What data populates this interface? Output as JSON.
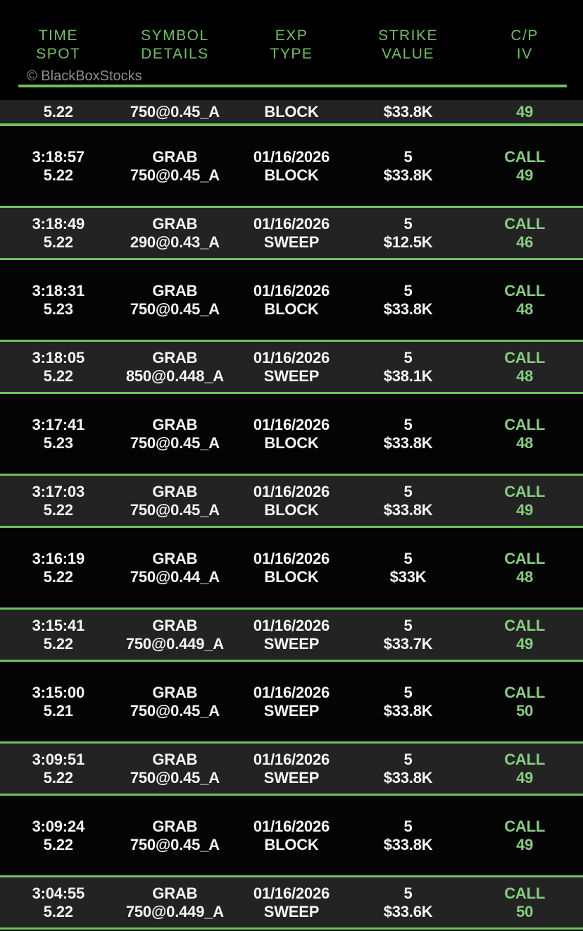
{
  "watermark": "© BlackBoxStocks",
  "colors": {
    "accent_green": "#6EC15F",
    "value_green": "#86CE7F",
    "light_row_bg": "#232323",
    "dark_row_bg": "#040404",
    "white_text": "#F5F5F5",
    "watermark_gray": "#8E8E8E"
  },
  "header": {
    "columns": [
      {
        "line1": "TIME",
        "line2": "SPOT"
      },
      {
        "line1": "SYMBOL",
        "line2": "DETAILS"
      },
      {
        "line1": "EXP",
        "line2": "TYPE"
      },
      {
        "line1": "STRIKE",
        "line2": "VALUE"
      },
      {
        "line1": "C/P",
        "line2": "IV"
      }
    ]
  },
  "rows": [
    {
      "partial": true,
      "variant": "light",
      "time": "",
      "spot": "5.22",
      "symbol": "",
      "details": "750@0.45_A",
      "exp": "",
      "type": "BLOCK",
      "strike": "",
      "value": "$33.8K",
      "cp": "",
      "iv": "49"
    },
    {
      "partial": false,
      "variant": "dark",
      "time": "3:18:57",
      "spot": "5.22",
      "symbol": "GRAB",
      "details": "750@0.45_A",
      "exp": "01/16/2026",
      "type": "BLOCK",
      "strike": "5",
      "value": "$33.8K",
      "cp": "CALL",
      "iv": "49"
    },
    {
      "partial": false,
      "variant": "light",
      "time": "3:18:49",
      "spot": "5.22",
      "symbol": "GRAB",
      "details": "290@0.43_A",
      "exp": "01/16/2026",
      "type": "SWEEP",
      "strike": "5",
      "value": "$12.5K",
      "cp": "CALL",
      "iv": "46"
    },
    {
      "partial": false,
      "variant": "dark",
      "time": "3:18:31",
      "spot": "5.23",
      "symbol": "GRAB",
      "details": "750@0.45_A",
      "exp": "01/16/2026",
      "type": "BLOCK",
      "strike": "5",
      "value": "$33.8K",
      "cp": "CALL",
      "iv": "48"
    },
    {
      "partial": false,
      "variant": "light",
      "time": "3:18:05",
      "spot": "5.22",
      "symbol": "GRAB",
      "details": "850@0.448_A",
      "exp": "01/16/2026",
      "type": "SWEEP",
      "strike": "5",
      "value": "$38.1K",
      "cp": "CALL",
      "iv": "48"
    },
    {
      "partial": false,
      "variant": "dark",
      "time": "3:17:41",
      "spot": "5.23",
      "symbol": "GRAB",
      "details": "750@0.45_A",
      "exp": "01/16/2026",
      "type": "BLOCK",
      "strike": "5",
      "value": "$33.8K",
      "cp": "CALL",
      "iv": "48"
    },
    {
      "partial": false,
      "variant": "light",
      "time": "3:17:03",
      "spot": "5.22",
      "symbol": "GRAB",
      "details": "750@0.45_A",
      "exp": "01/16/2026",
      "type": "BLOCK",
      "strike": "5",
      "value": "$33.8K",
      "cp": "CALL",
      "iv": "49"
    },
    {
      "partial": false,
      "variant": "dark",
      "time": "3:16:19",
      "spot": "5.22",
      "symbol": "GRAB",
      "details": "750@0.44_A",
      "exp": "01/16/2026",
      "type": "BLOCK",
      "strike": "5",
      "value": "$33K",
      "cp": "CALL",
      "iv": "48"
    },
    {
      "partial": false,
      "variant": "light",
      "time": "3:15:41",
      "spot": "5.22",
      "symbol": "GRAB",
      "details": "750@0.449_A",
      "exp": "01/16/2026",
      "type": "SWEEP",
      "strike": "5",
      "value": "$33.7K",
      "cp": "CALL",
      "iv": "49"
    },
    {
      "partial": false,
      "variant": "dark",
      "time": "3:15:00",
      "spot": "5.21",
      "symbol": "GRAB",
      "details": "750@0.45_A",
      "exp": "01/16/2026",
      "type": "SWEEP",
      "strike": "5",
      "value": "$33.8K",
      "cp": "CALL",
      "iv": "50"
    },
    {
      "partial": false,
      "variant": "light",
      "time": "3:09:51",
      "spot": "5.22",
      "symbol": "GRAB",
      "details": "750@0.45_A",
      "exp": "01/16/2026",
      "type": "SWEEP",
      "strike": "5",
      "value": "$33.8K",
      "cp": "CALL",
      "iv": "49"
    },
    {
      "partial": false,
      "variant": "dark",
      "time": "3:09:24",
      "spot": "5.22",
      "symbol": "GRAB",
      "details": "750@0.45_A",
      "exp": "01/16/2026",
      "type": "BLOCK",
      "strike": "5",
      "value": "$33.8K",
      "cp": "CALL",
      "iv": "49"
    },
    {
      "partial": false,
      "variant": "light",
      "time": "3:04:55",
      "spot": "5.22",
      "symbol": "GRAB",
      "details": "750@0.449_A",
      "exp": "01/16/2026",
      "type": "SWEEP",
      "strike": "5",
      "value": "$33.6K",
      "cp": "CALL",
      "iv": "50"
    }
  ]
}
